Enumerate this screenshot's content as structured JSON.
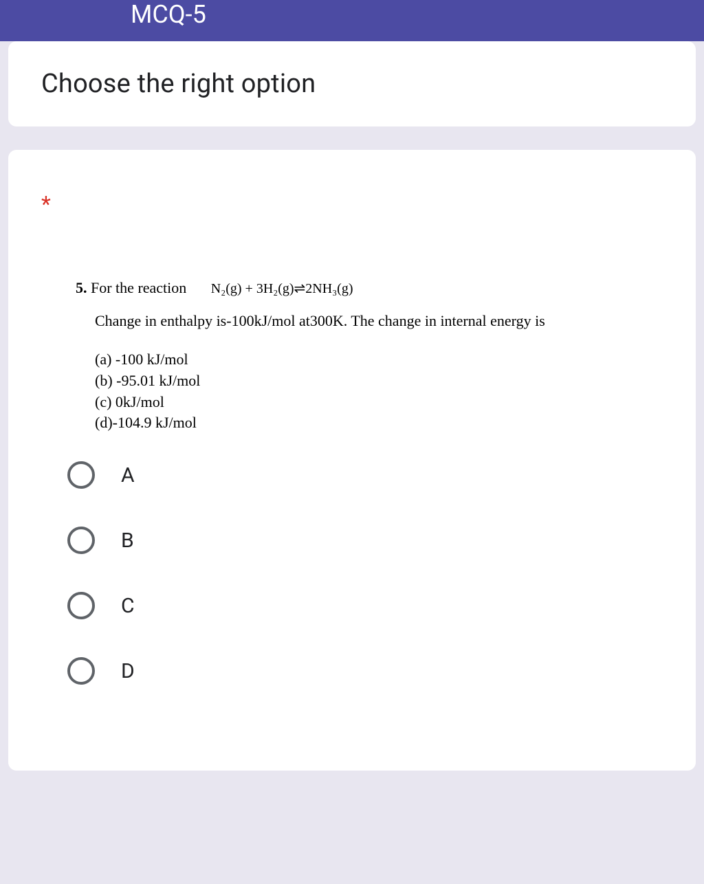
{
  "header": {
    "title": "MCQ-5"
  },
  "instruction_card": {
    "text": "Choose the right option"
  },
  "question_card": {
    "required_mark": "*",
    "question_number": "5.",
    "question_intro": "For the reaction",
    "reaction": "N₂(g) + 3H₂(g)⇌2NH₃(g)",
    "description": "Change in enthalpy is-100kJ/mol at300K. The change in internal energy is",
    "choices": {
      "a": "(a) -100 kJ/mol",
      "b": "(b) -95.01 kJ/mol",
      "c": "(c) 0kJ/mol",
      "d": "(d)-104.9 kJ/mol"
    },
    "radio_options": {
      "a": "A",
      "b": "B",
      "c": "C",
      "d": "D"
    }
  },
  "styling": {
    "header_bg": "#4c4ba3",
    "body_bg": "#e8e6f0",
    "card_bg": "#ffffff",
    "text_color": "#202124",
    "required_color": "#d93025",
    "radio_border": "#5f6368"
  }
}
